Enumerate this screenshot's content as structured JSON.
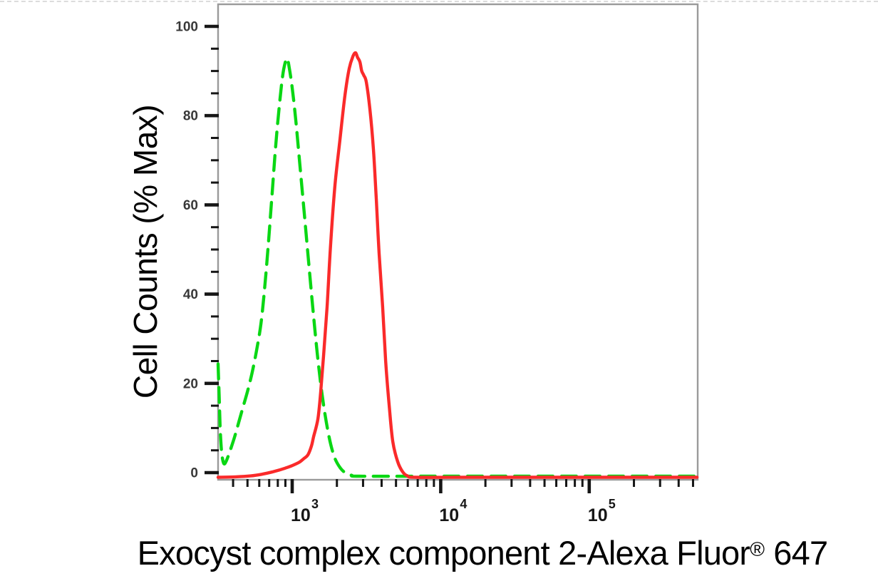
{
  "figure": {
    "background_color": "#ffffff",
    "top_edge_line_color": "#dcdcdc"
  },
  "chart_data": {
    "type": "line",
    "subtype": "flow-cytometry-overlay-histogram",
    "title": "",
    "ylabel": "Cell Counts (% Max)",
    "xlabel": "Exocyst complex component 2-Alexa Fluor® 647",
    "xlabel_parts": {
      "prefix": "Exocyst complex component 2-Alexa Fluor",
      "registered": "®",
      "suffix": " 647"
    },
    "grid": false,
    "legend": false,
    "x_axis": {
      "scale": "log10",
      "min": 320,
      "max": 530000,
      "min_log10": 2.501,
      "max_log10": 5.726,
      "major_ticks": [
        {
          "log10": 3,
          "base": "10",
          "exponent": "3"
        },
        {
          "log10": 4,
          "base": "10",
          "exponent": "4"
        },
        {
          "log10": 5,
          "base": "10",
          "exponent": "5"
        }
      ],
      "minor_ticks_per_decade": [
        2,
        3,
        4,
        5,
        6,
        7,
        8,
        9
      ]
    },
    "y_axis": {
      "min": 0,
      "max": 100,
      "major_ticks": [
        0,
        20,
        40,
        60,
        80,
        100
      ],
      "major_tick_labels": [
        "0",
        "20",
        "40",
        "60",
        "80",
        "100"
      ],
      "minor_tick_step": 5
    },
    "colors": {
      "frame": "#9a9a9a",
      "ticks": "#161616",
      "tick_labels": "#383838",
      "axis_titles": "#000000"
    },
    "series": [
      {
        "name": "green-dashed-histogram",
        "color": "#0ad714",
        "line_style": "dashed",
        "points_log10x_pct": [
          [
            2.501,
            25
          ],
          [
            2.508,
            18
          ],
          [
            2.516,
            10
          ],
          [
            2.526,
            5
          ],
          [
            2.54,
            2.8
          ],
          [
            2.556,
            3.4
          ],
          [
            2.58,
            5.5
          ],
          [
            2.61,
            8.5
          ],
          [
            2.64,
            12
          ],
          [
            2.67,
            15.5
          ],
          [
            2.7,
            19
          ],
          [
            2.73,
            23
          ],
          [
            2.76,
            28
          ],
          [
            2.79,
            34
          ],
          [
            2.815,
            42
          ],
          [
            2.84,
            52
          ],
          [
            2.865,
            63
          ],
          [
            2.89,
            74
          ],
          [
            2.915,
            83
          ],
          [
            2.935,
            89
          ],
          [
            2.952,
            92
          ],
          [
            2.966,
            93
          ],
          [
            2.98,
            91
          ],
          [
            3.0,
            86.5
          ],
          [
            3.025,
            79
          ],
          [
            3.05,
            70
          ],
          [
            3.08,
            59
          ],
          [
            3.11,
            48
          ],
          [
            3.14,
            37
          ],
          [
            3.17,
            27
          ],
          [
            3.2,
            18.5
          ],
          [
            3.23,
            12
          ],
          [
            3.26,
            7
          ],
          [
            3.29,
            3.8
          ],
          [
            3.325,
            1.8
          ],
          [
            3.36,
            0.7
          ],
          [
            3.4,
            0.2
          ],
          [
            3.45,
            0
          ],
          [
            3.9,
            0
          ],
          [
            4.4,
            0
          ],
          [
            4.9,
            0
          ],
          [
            5.4,
            0
          ],
          [
            5.726,
            0
          ]
        ]
      },
      {
        "name": "red-solid-histogram",
        "color": "#fa2a2a",
        "line_style": "solid",
        "points_log10x_pct": [
          [
            2.501,
            0
          ],
          [
            2.62,
            0.1
          ],
          [
            2.72,
            0.3
          ],
          [
            2.8,
            0.7
          ],
          [
            2.88,
            1.3
          ],
          [
            2.95,
            2
          ],
          [
            3.0,
            2.6
          ],
          [
            3.05,
            3.4
          ],
          [
            3.08,
            4.2
          ],
          [
            3.106,
            5
          ],
          [
            3.13,
            7
          ],
          [
            3.144,
            9
          ],
          [
            3.173,
            13
          ],
          [
            3.192,
            19
          ],
          [
            3.211,
            27
          ],
          [
            3.235,
            38
          ],
          [
            3.259,
            52
          ],
          [
            3.288,
            65
          ],
          [
            3.321,
            75
          ],
          [
            3.355,
            85
          ],
          [
            3.384,
            91
          ],
          [
            3.41,
            93.8
          ],
          [
            3.427,
            94.5
          ],
          [
            3.44,
            93.5
          ],
          [
            3.456,
            92.5
          ],
          [
            3.468,
            90.5
          ],
          [
            3.482,
            89.5
          ],
          [
            3.499,
            88
          ],
          [
            3.523,
            82
          ],
          [
            3.547,
            73
          ],
          [
            3.566,
            62
          ],
          [
            3.585,
            50
          ],
          [
            3.609,
            38
          ],
          [
            3.629,
            26
          ],
          [
            3.653,
            16
          ],
          [
            3.677,
            8
          ],
          [
            3.71,
            3.5
          ],
          [
            3.744,
            1.2
          ],
          [
            3.777,
            0.3
          ],
          [
            3.83,
            0
          ],
          [
            4.2,
            0
          ],
          [
            4.7,
            0
          ],
          [
            5.2,
            0
          ],
          [
            5.726,
            0
          ]
        ]
      }
    ]
  }
}
